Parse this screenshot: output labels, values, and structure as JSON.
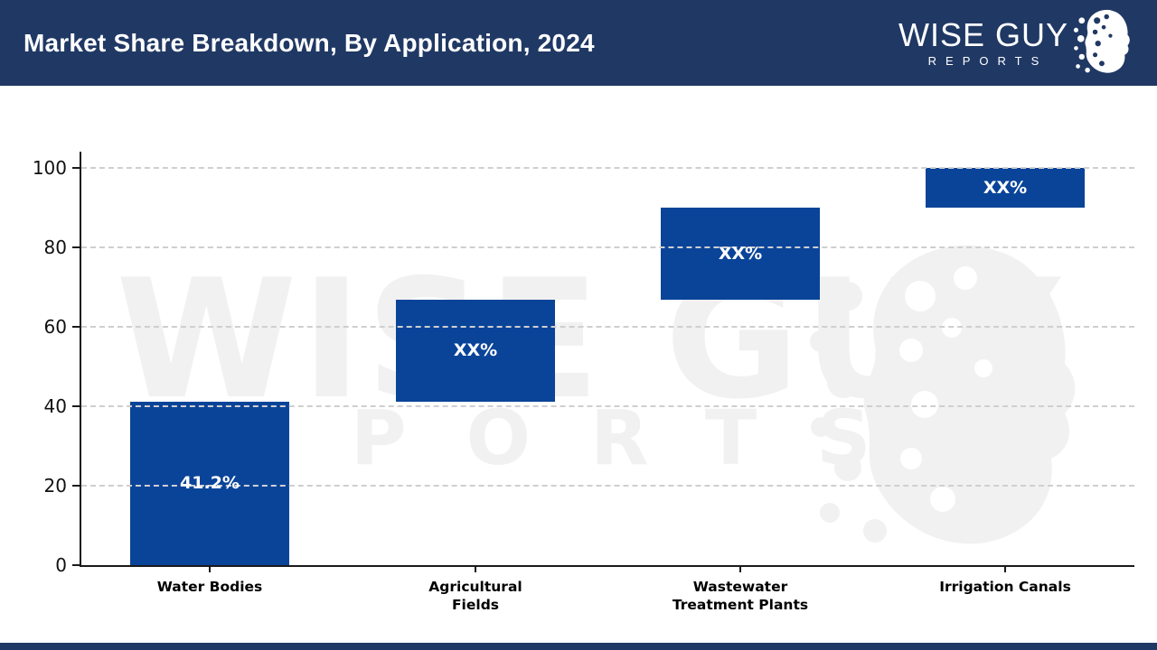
{
  "header": {
    "title": "Market Share Breakdown, By Application, 2024",
    "logo": {
      "line1": "WISE GUY",
      "line2": "REPORTS"
    }
  },
  "watermark": {
    "line1": "WISE GUY",
    "line2": "PORTS"
  },
  "chart_data": {
    "type": "bar",
    "subtype": "waterfall",
    "title": "Market Share Breakdown, By Application, 2024",
    "categories": [
      "Water Bodies",
      "Agricultural\nFields",
      "Wastewater\nTreatment Plants",
      "Irrigation Canals"
    ],
    "segments": [
      {
        "category": "Water Bodies",
        "start": 0,
        "end": 41.2,
        "label": "41.2%"
      },
      {
        "category": "Agricultural Fields",
        "start": 41.2,
        "end": 66.8,
        "label": "XX%"
      },
      {
        "category": "Wastewater Treatment Plants",
        "start": 66.8,
        "end": 90,
        "label": "XX%"
      },
      {
        "category": "Irrigation Canals",
        "start": 90,
        "end": 100,
        "label": "XX%"
      }
    ],
    "ylim": [
      0,
      100
    ],
    "yticks": [
      0,
      20,
      40,
      60,
      80,
      100
    ],
    "grid": "horizontal-dashed",
    "legend": "none",
    "bar_color": "#0a4499",
    "value_label_color": "#ffffff"
  },
  "colors": {
    "header_bg": "#203864",
    "footer_bg": "#203864",
    "axis": "#1a1a1a",
    "gridline": "#cfcfcf",
    "watermark": "#f1f1f1",
    "background": "#ffffff"
  }
}
